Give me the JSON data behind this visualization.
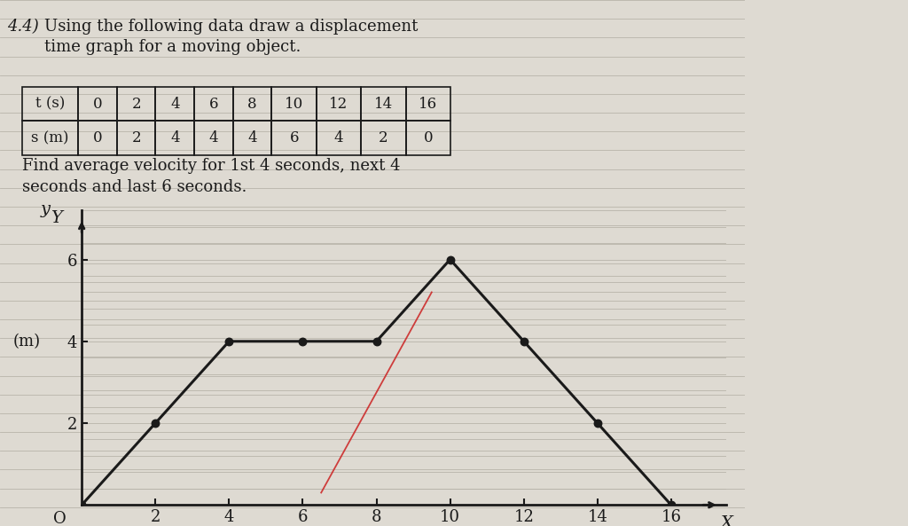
{
  "time": [
    0,
    2,
    4,
    6,
    8,
    10,
    12,
    14,
    16
  ],
  "displacement": [
    0,
    2,
    4,
    4,
    4,
    6,
    4,
    2,
    0
  ],
  "bg_color": "#dedad2",
  "right_bg_color": "#c8a84b",
  "line_color": "#1a1a1a",
  "ruled_line_color": "#b8b4aa",
  "line_width": 2.2,
  "marker_size": 5,
  "xlim": [
    0,
    17.5
  ],
  "ylim": [
    0,
    7.2
  ],
  "x_ticks": [
    2,
    4,
    6,
    8,
    10,
    12,
    14,
    16
  ],
  "y_ticks": [
    2,
    4,
    6
  ],
  "font_size_ticks": 13,
  "font_size_labels": 14,
  "font_size_text": 13,
  "red_line_x": [
    6.5,
    9.5
  ],
  "red_line_y": [
    0.3,
    5.2
  ],
  "title_line1": "Using the following data draw a displacement",
  "title_line2": "time graph for a moving object.",
  "table_t_label": "t (s)",
  "table_s_label": "s (m)",
  "table_t_values": [
    "0",
    "2",
    "4",
    "6",
    "8",
    "10",
    "12",
    "14",
    "16"
  ],
  "table_s_values": [
    "0",
    "2",
    "4",
    "4",
    "4",
    "6",
    "4",
    "2",
    "0"
  ],
  "find_text_line1": "Find average velocity for 1st 4 seconds, next 4",
  "find_text_line2": "seconds and last 6 seconds."
}
